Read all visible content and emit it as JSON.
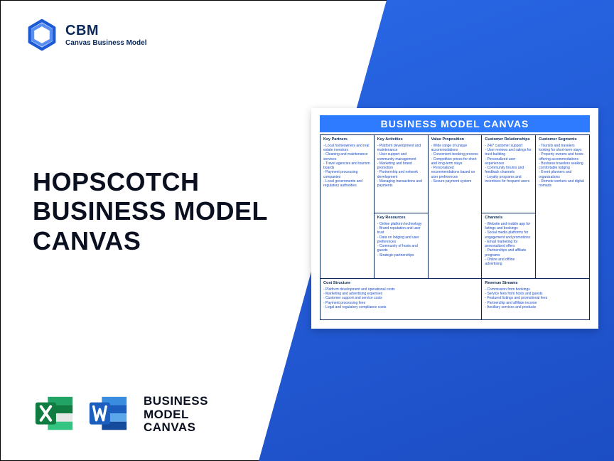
{
  "brand": {
    "name": "CBM",
    "tagline": "Canvas Business Model"
  },
  "headline": "HOPSCOTCH\nBUSINESS MODEL\nCANVAS",
  "bottom_label": "BUSINESS\nMODEL\nCANVAS",
  "canvas": {
    "title": "BUSINESS MODEL CANVAS",
    "sections": {
      "kp": {
        "heading": "Key Partners",
        "items": [
          "- Local homeowners and real estate investors",
          "- Cleaning and maintenance services",
          "- Travel agencies and tourism boards",
          "- Payment processing companies",
          "- Local governments and regulatory authorities"
        ]
      },
      "ka": {
        "heading": "Key Activities",
        "items": [
          "- Platform development and maintenance",
          "- User support and community management",
          "- Marketing and brand promotion",
          "- Partnership and network development",
          "- Managing transactions and payments"
        ]
      },
      "vp": {
        "heading": "Value Proposition",
        "items": [
          "- Wide range of unique accommodations",
          "- Convenient booking process",
          "- Competitive prices for short and long-term stays",
          "- Personalized recommendations based on user preferences",
          "- Secure payment system"
        ]
      },
      "cr": {
        "heading": "Customer Relationships",
        "items": [
          "- 24/7 customer support",
          "- User reviews and ratings for trust-building",
          "- Personalized user experiences",
          "- Community forums and feedback channels",
          "- Loyalty programs and incentives for frequent users"
        ]
      },
      "cs": {
        "heading": "Customer Segments",
        "items": [
          "- Tourists and travelers looking for short-term stays",
          "- Property owners and hosts offering accommodations",
          "- Business travelers seeking comfortable lodging",
          "- Event planners and organizations",
          "- Remote workers and digital nomads"
        ]
      },
      "kr": {
        "heading": "Key Resources",
        "items": [
          "- Online platform technology",
          "- Brand reputation and user trust",
          "- Data on lodging and user preferences",
          "- Community of hosts and guests",
          "- Strategic partnerships"
        ]
      },
      "ch": {
        "heading": "Channels",
        "items": [
          "- Website and mobile app for listings and bookings",
          "- Social media platforms for engagement and promotions",
          "- Email marketing for personalized offers",
          "- Partnerships and affiliate programs",
          "- Online and offline advertising"
        ]
      },
      "cost": {
        "heading": "Cost Structure",
        "items": [
          "- Platform development and operational costs",
          "- Marketing and advertising expenses",
          "- Customer support and service costs",
          "- Payment processing fees",
          "- Legal and regulatory compliance costs"
        ]
      },
      "rev": {
        "heading": "Revenue Streams",
        "items": [
          "- Commission from bookings",
          "- Service fees from hosts and guests",
          "- Featured listings and promotional fees",
          "- Partnership and affiliate income",
          "- Ancillary services and products"
        ]
      }
    }
  },
  "colors": {
    "accent": "#2e7bff",
    "dark": "#0b2a5b",
    "excel_dark": "#107c41",
    "excel_light": "#21a366",
    "word_dark": "#1b5ebe",
    "word_light": "#3a8dde"
  }
}
